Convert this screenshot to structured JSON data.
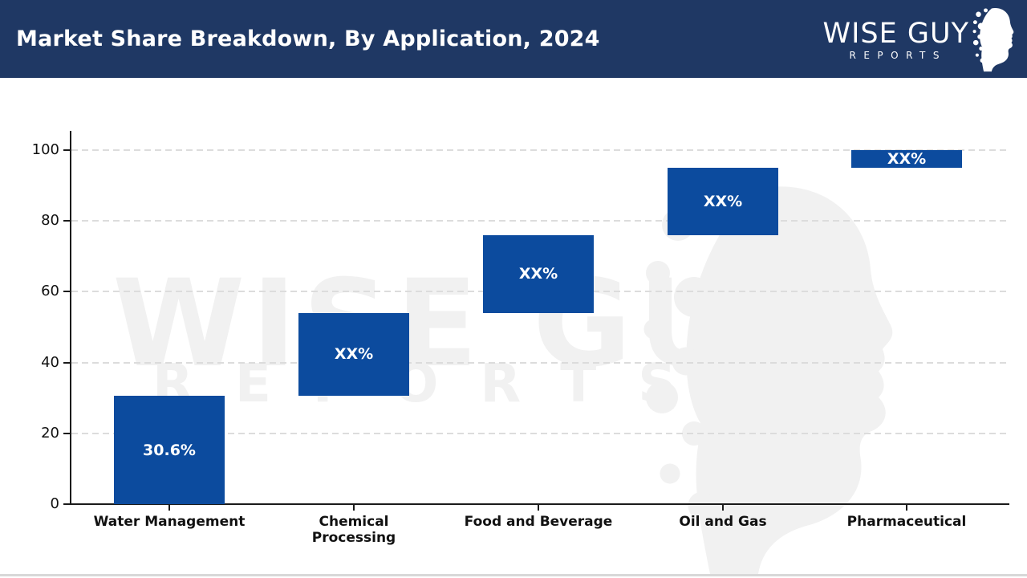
{
  "header": {
    "title": "Market Share Breakdown, By Application, 2024",
    "logo": {
      "line1": "WISE GUY",
      "line2": "REPORTS"
    }
  },
  "watermark": {
    "line1": "WISE GUY",
    "line2": "REPORTS"
  },
  "colors": {
    "header_bg": "#1f3864",
    "bar": "#0c4b9e",
    "bar_label": "#ffffff",
    "gridline": "#dcdcdc",
    "axis": "#1a1a1a",
    "watermark": "#f1f1f1"
  },
  "chart_data": {
    "type": "bar",
    "subtype": "waterfall",
    "title": "Market Share Breakdown, By Application, 2024",
    "xlabel": "",
    "ylabel": "",
    "ylim": [
      0,
      105
    ],
    "yticks": [
      0,
      20,
      40,
      60,
      80,
      100
    ],
    "grid": "horizontal dashed",
    "legend": "none",
    "categories": [
      "Water Management",
      "Chemical\nProcessing",
      "Food and Beverage",
      "Oil and Gas",
      "Pharmaceutical"
    ],
    "segments": [
      {
        "category": "Water Management",
        "start": 0,
        "end": 30.6,
        "value_label": "30.6%"
      },
      {
        "category": "Chemical Processing",
        "start": 30.6,
        "end": 54,
        "value_label": "XX%"
      },
      {
        "category": "Food and Beverage",
        "start": 54,
        "end": 76,
        "value_label": "XX%"
      },
      {
        "category": "Oil and Gas",
        "start": 76,
        "end": 95,
        "value_label": "XX%"
      },
      {
        "category": "Pharmaceutical",
        "start": 95,
        "end": 100,
        "value_label": "XX%"
      }
    ]
  }
}
